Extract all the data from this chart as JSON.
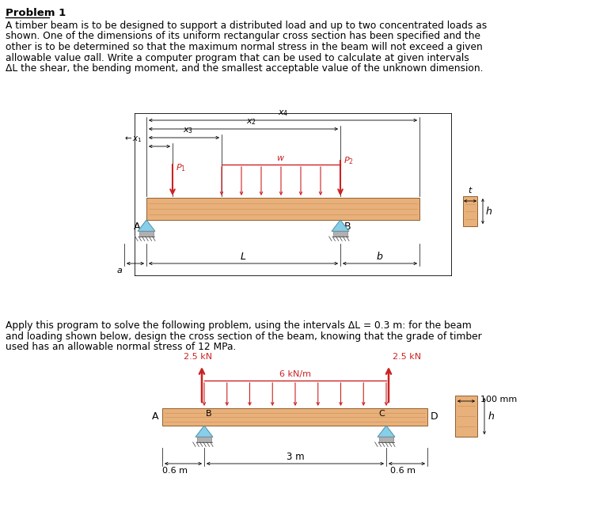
{
  "title": "Problem 1",
  "bg_color": "#FFFFFF",
  "text_color": "#000000",
  "red_color": "#CC2222",
  "beam_base": "#E8B07A",
  "beam_grain": "#C08040",
  "support_color": "#87CEEB",
  "support_edge": "#5090A0",
  "dim_color": "#000000",
  "gray_hatch": "#555555",
  "paragraph1_lines": [
    "A timber beam is to be designed to support a distributed load and up to two concentrated loads as",
    "shown. One of the dimensions of its uniform rectangular cross section has been specified and the",
    "other is to be determined so that the maximum normal stress in the beam will not exceed a given",
    "allowable value σall. Write a computer program that can be used to calculate at given intervals",
    "ΔL the shear, the bending moment, and the smallest acceptable value of the unknown dimension."
  ],
  "paragraph2_lines": [
    "Apply this program to solve the following problem, using the intervals ΔL = 0.3 m: for the beam",
    "and loading shown below, design the cross section of the beam, knowing that the grade of timber",
    "used has an allowable normal stress of 12 MPa."
  ]
}
